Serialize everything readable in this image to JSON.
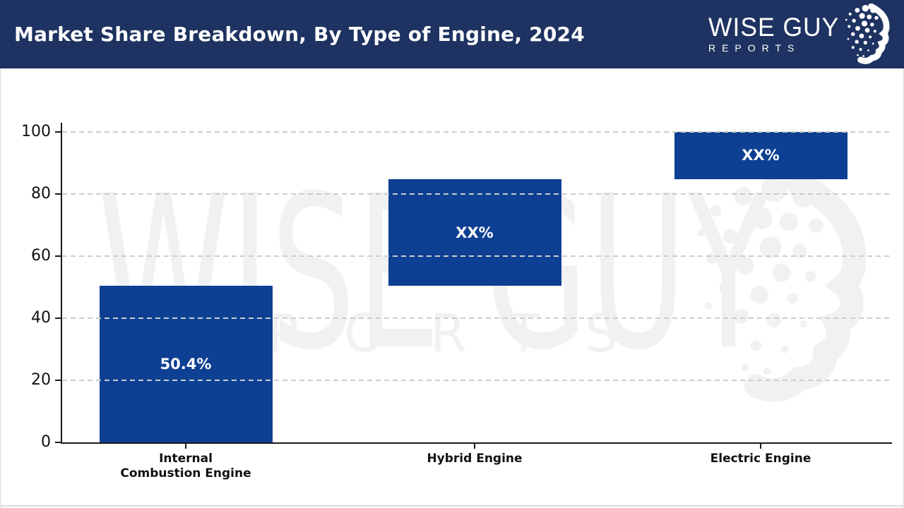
{
  "header": {
    "title": "Market Share Breakdown, By Type of Engine, 2024",
    "bg_color": "#1e3361",
    "logo": {
      "line1": "WISE GUY",
      "line2": "REPORTS"
    }
  },
  "watermark": {
    "line1": "WISE GUY",
    "line2": "REPORTS"
  },
  "chart_data": {
    "type": "bar",
    "variant": "stacked_waterfall_segments",
    "title": "Market Share Breakdown, By Type of Engine, 2024",
    "categories": [
      "Internal Combustion Engine",
      "Hybrid Engine",
      "Electric Engine"
    ],
    "category_label_lines": [
      [
        "Internal",
        "Combustion Engine"
      ],
      [
        "Hybrid Engine"
      ],
      [
        "Electric Engine"
      ]
    ],
    "bars": [
      {
        "category": "Internal Combustion Engine",
        "label": "50.4%",
        "start": 0,
        "end": 50.4
      },
      {
        "category": "Hybrid Engine",
        "label": "XX%",
        "start": 50.4,
        "end": 84.8
      },
      {
        "category": "Electric Engine",
        "label": "XX%",
        "start": 84.8,
        "end": 100
      }
    ],
    "xlabel": "",
    "ylabel": "",
    "yticks": [
      0,
      20,
      40,
      60,
      80,
      100
    ],
    "ylim": [
      0,
      103
    ],
    "grid": {
      "horizontal": true,
      "style": "dashed",
      "color": "#cfcfcf",
      "above_bars": true
    },
    "legend": "none",
    "bar_color": "#0d4092",
    "bar_label_color": "#ffffff",
    "axis_color": "#1a1a1a"
  }
}
